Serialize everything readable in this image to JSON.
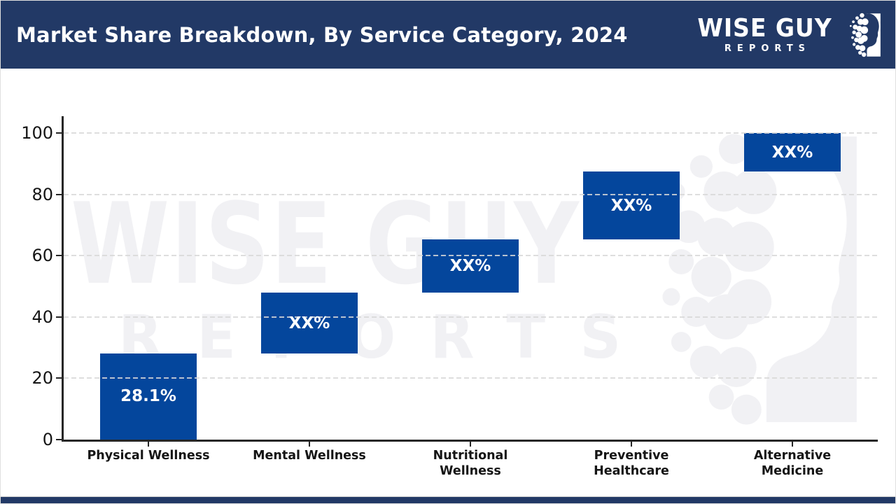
{
  "header": {
    "title": "Market Share Breakdown, By Service Category, 2024",
    "logo": {
      "name": "WISE GUY",
      "tagline": "REPORTS"
    }
  },
  "watermark": {
    "name": "WISE GUY",
    "tagline": "REPORTS"
  },
  "chart_data": {
    "type": "bar",
    "variant": "waterfall",
    "title": "Market Share Breakdown, By Service Category, 2024",
    "categories": [
      "Physical Wellness",
      "Mental Wellness",
      "Nutritional Wellness",
      "Preventive Healthcare",
      "Alternative Medicine"
    ],
    "x_tick_labels": [
      "Physical Wellness",
      "Mental Wellness",
      "Nutritional\nWellness",
      "Preventive\nHealthcare",
      "Alternative\nMedicine"
    ],
    "segments": [
      {
        "category": "Physical Wellness",
        "start": 0,
        "end": 28.1,
        "label": "28.1%"
      },
      {
        "category": "Mental Wellness",
        "start": 28.1,
        "end": 47.9,
        "label": "XX%"
      },
      {
        "category": "Nutritional Wellness",
        "start": 47.9,
        "end": 65.2,
        "label": "XX%"
      },
      {
        "category": "Preventive Healthcare",
        "start": 65.2,
        "end": 87.4,
        "label": "XX%"
      },
      {
        "category": "Alternative Medicine",
        "start": 87.4,
        "end": 100,
        "label": "XX%"
      }
    ],
    "xlabel": "",
    "ylabel": "",
    "ylim": [
      0,
      100
    ],
    "yticks": [
      0,
      20,
      40,
      60,
      80,
      100
    ],
    "grid": "horizontal-dashed-over-bars",
    "legend": "none"
  },
  "colors": {
    "header_bg": "#223966",
    "footer_bg": "#223966",
    "bar": "#04469c",
    "bar_label": "#ffffff",
    "grid": "#d8d8d8",
    "axis": "#262626",
    "tick_text": "#151515",
    "watermark": "#f1f1f4"
  }
}
